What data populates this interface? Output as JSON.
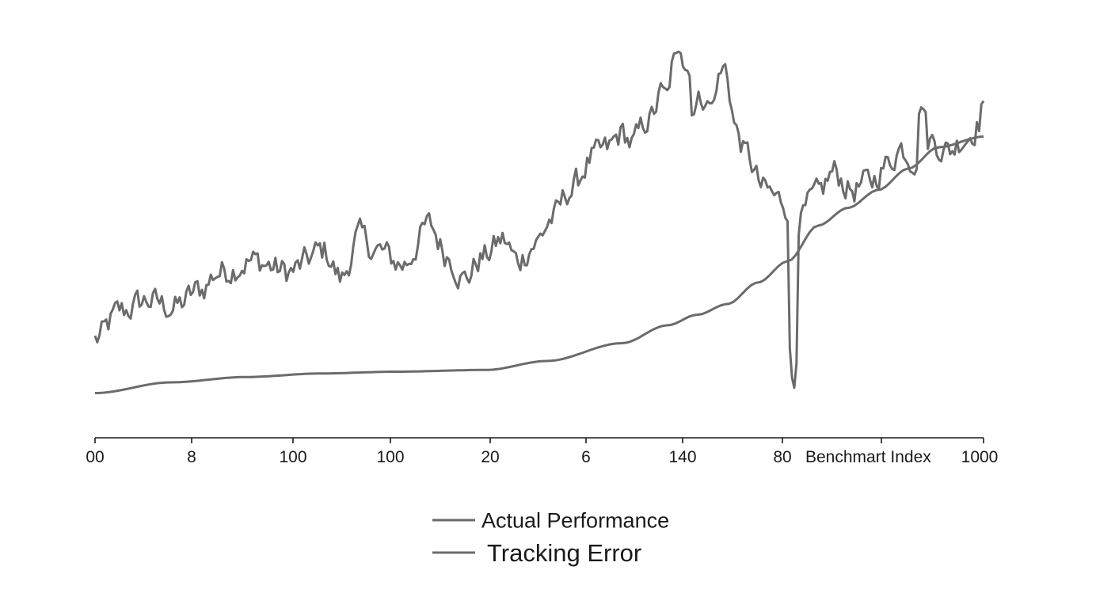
{
  "chart_data": {
    "type": "line",
    "title": "",
    "xlabel": "",
    "ylabel": "",
    "grid": false,
    "legend_position": "bottom-center",
    "x_tick_labels": [
      "00",
      "8",
      "100",
      "100",
      "20",
      "6",
      "140",
      "80",
      "Benchmart Index",
      "1000"
    ],
    "ylim": [
      0,
      100
    ],
    "x_points": 400,
    "series_color": "#6b6b6b",
    "series": [
      {
        "name": "Actual Performance",
        "anchors": [
          [
            0,
            18
          ],
          [
            15,
            26
          ],
          [
            30,
            29
          ],
          [
            45,
            27
          ],
          [
            60,
            32
          ],
          [
            70,
            37
          ],
          [
            90,
            40
          ],
          [
            110,
            37
          ],
          [
            130,
            43
          ],
          [
            140,
            35
          ],
          [
            150,
            47
          ],
          [
            160,
            43
          ],
          [
            175,
            39
          ],
          [
            190,
            50
          ],
          [
            200,
            42
          ],
          [
            210,
            35
          ],
          [
            220,
            41
          ],
          [
            232,
            46
          ],
          [
            240,
            40
          ],
          [
            250,
            45
          ],
          [
            260,
            52
          ],
          [
            270,
            60
          ],
          [
            283,
            69
          ],
          [
            290,
            71
          ],
          [
            300,
            76
          ],
          [
            305,
            73
          ],
          [
            315,
            80
          ],
          [
            325,
            90
          ],
          [
            332,
            98
          ],
          [
            340,
            84
          ],
          [
            350,
            88
          ],
          [
            358,
            94
          ],
          [
            365,
            76
          ],
          [
            370,
            70
          ],
          [
            380,
            60
          ],
          [
            390,
            57
          ],
          [
            400,
            52
          ],
          [
            410,
            58
          ],
          [
            420,
            65
          ],
          [
            430,
            60
          ],
          [
            440,
            62
          ],
          [
            450,
            67
          ],
          [
            458,
            72
          ],
          [
            465,
            69
          ],
          [
            475,
            74
          ],
          [
            485,
            71
          ],
          [
            495,
            75
          ],
          [
            505,
            80
          ]
        ],
        "noise_amplitude": 6.5,
        "spikes": [
          {
            "x": 325,
            "y": 88
          },
          {
            "x": 332,
            "y": 99
          },
          {
            "x": 336,
            "y": 94
          },
          {
            "x": 350,
            "y": 84
          },
          {
            "x": 397,
            "y": 2
          },
          {
            "x": 470,
            "y": 84
          },
          {
            "x": 505,
            "y": 85
          }
        ]
      },
      {
        "name": "Tracking Error",
        "anchors": [
          [
            0,
            3
          ],
          [
            50,
            6
          ],
          [
            100,
            7.5
          ],
          [
            150,
            8.5
          ],
          [
            200,
            9
          ],
          [
            260,
            9.5
          ],
          [
            300,
            12
          ],
          [
            350,
            17
          ],
          [
            380,
            22
          ],
          [
            400,
            25
          ],
          [
            420,
            28
          ],
          [
            440,
            34
          ],
          [
            460,
            40
          ],
          [
            480,
            50
          ],
          [
            500,
            55
          ],
          [
            520,
            60
          ],
          [
            540,
            66
          ],
          [
            560,
            72
          ],
          [
            590,
            75
          ]
        ]
      }
    ]
  }
}
